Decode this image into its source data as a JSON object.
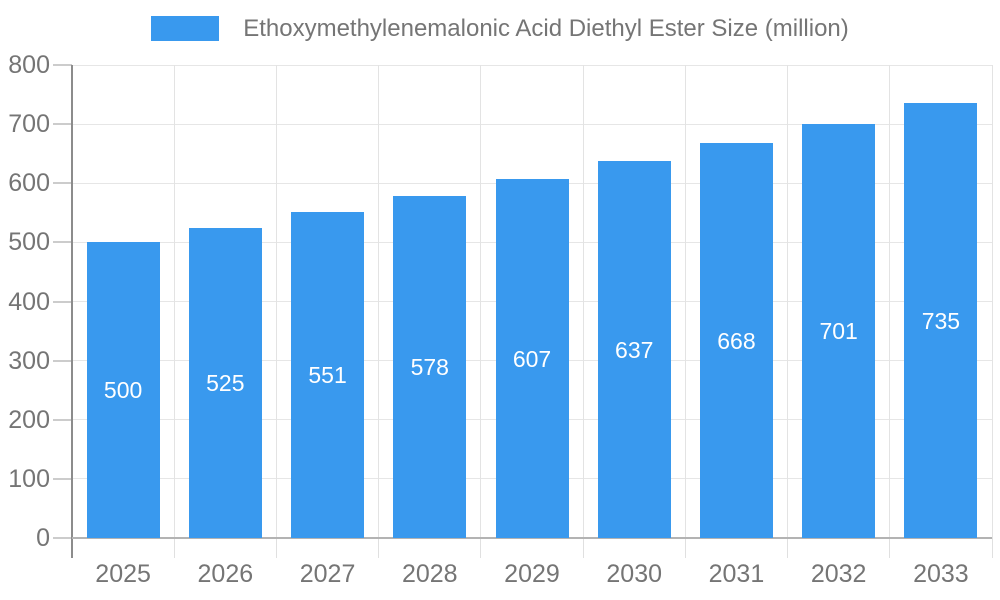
{
  "chart_data": {
    "type": "bar",
    "legend_label": "Ethoxymethylenemalonic Acid Diethyl Ester Size (million)",
    "categories": [
      "2025",
      "2026",
      "2027",
      "2028",
      "2029",
      "2030",
      "2031",
      "2032",
      "2033"
    ],
    "values": [
      500,
      525,
      551,
      578,
      607,
      637,
      668,
      701,
      735
    ],
    "yticks": [
      0,
      100,
      200,
      300,
      400,
      500,
      600,
      700,
      800
    ],
    "ylim": [
      0,
      800
    ],
    "grid": "both",
    "legend_position": "top",
    "value_labels": "inside-center",
    "colors": {
      "bar": "#3999ee",
      "axis_text": "#757575",
      "value_text": "#ffffff",
      "gridline": "#e6e6e6",
      "axis_line": "#8c8c8c",
      "baseline": "#b3b3b3"
    }
  }
}
